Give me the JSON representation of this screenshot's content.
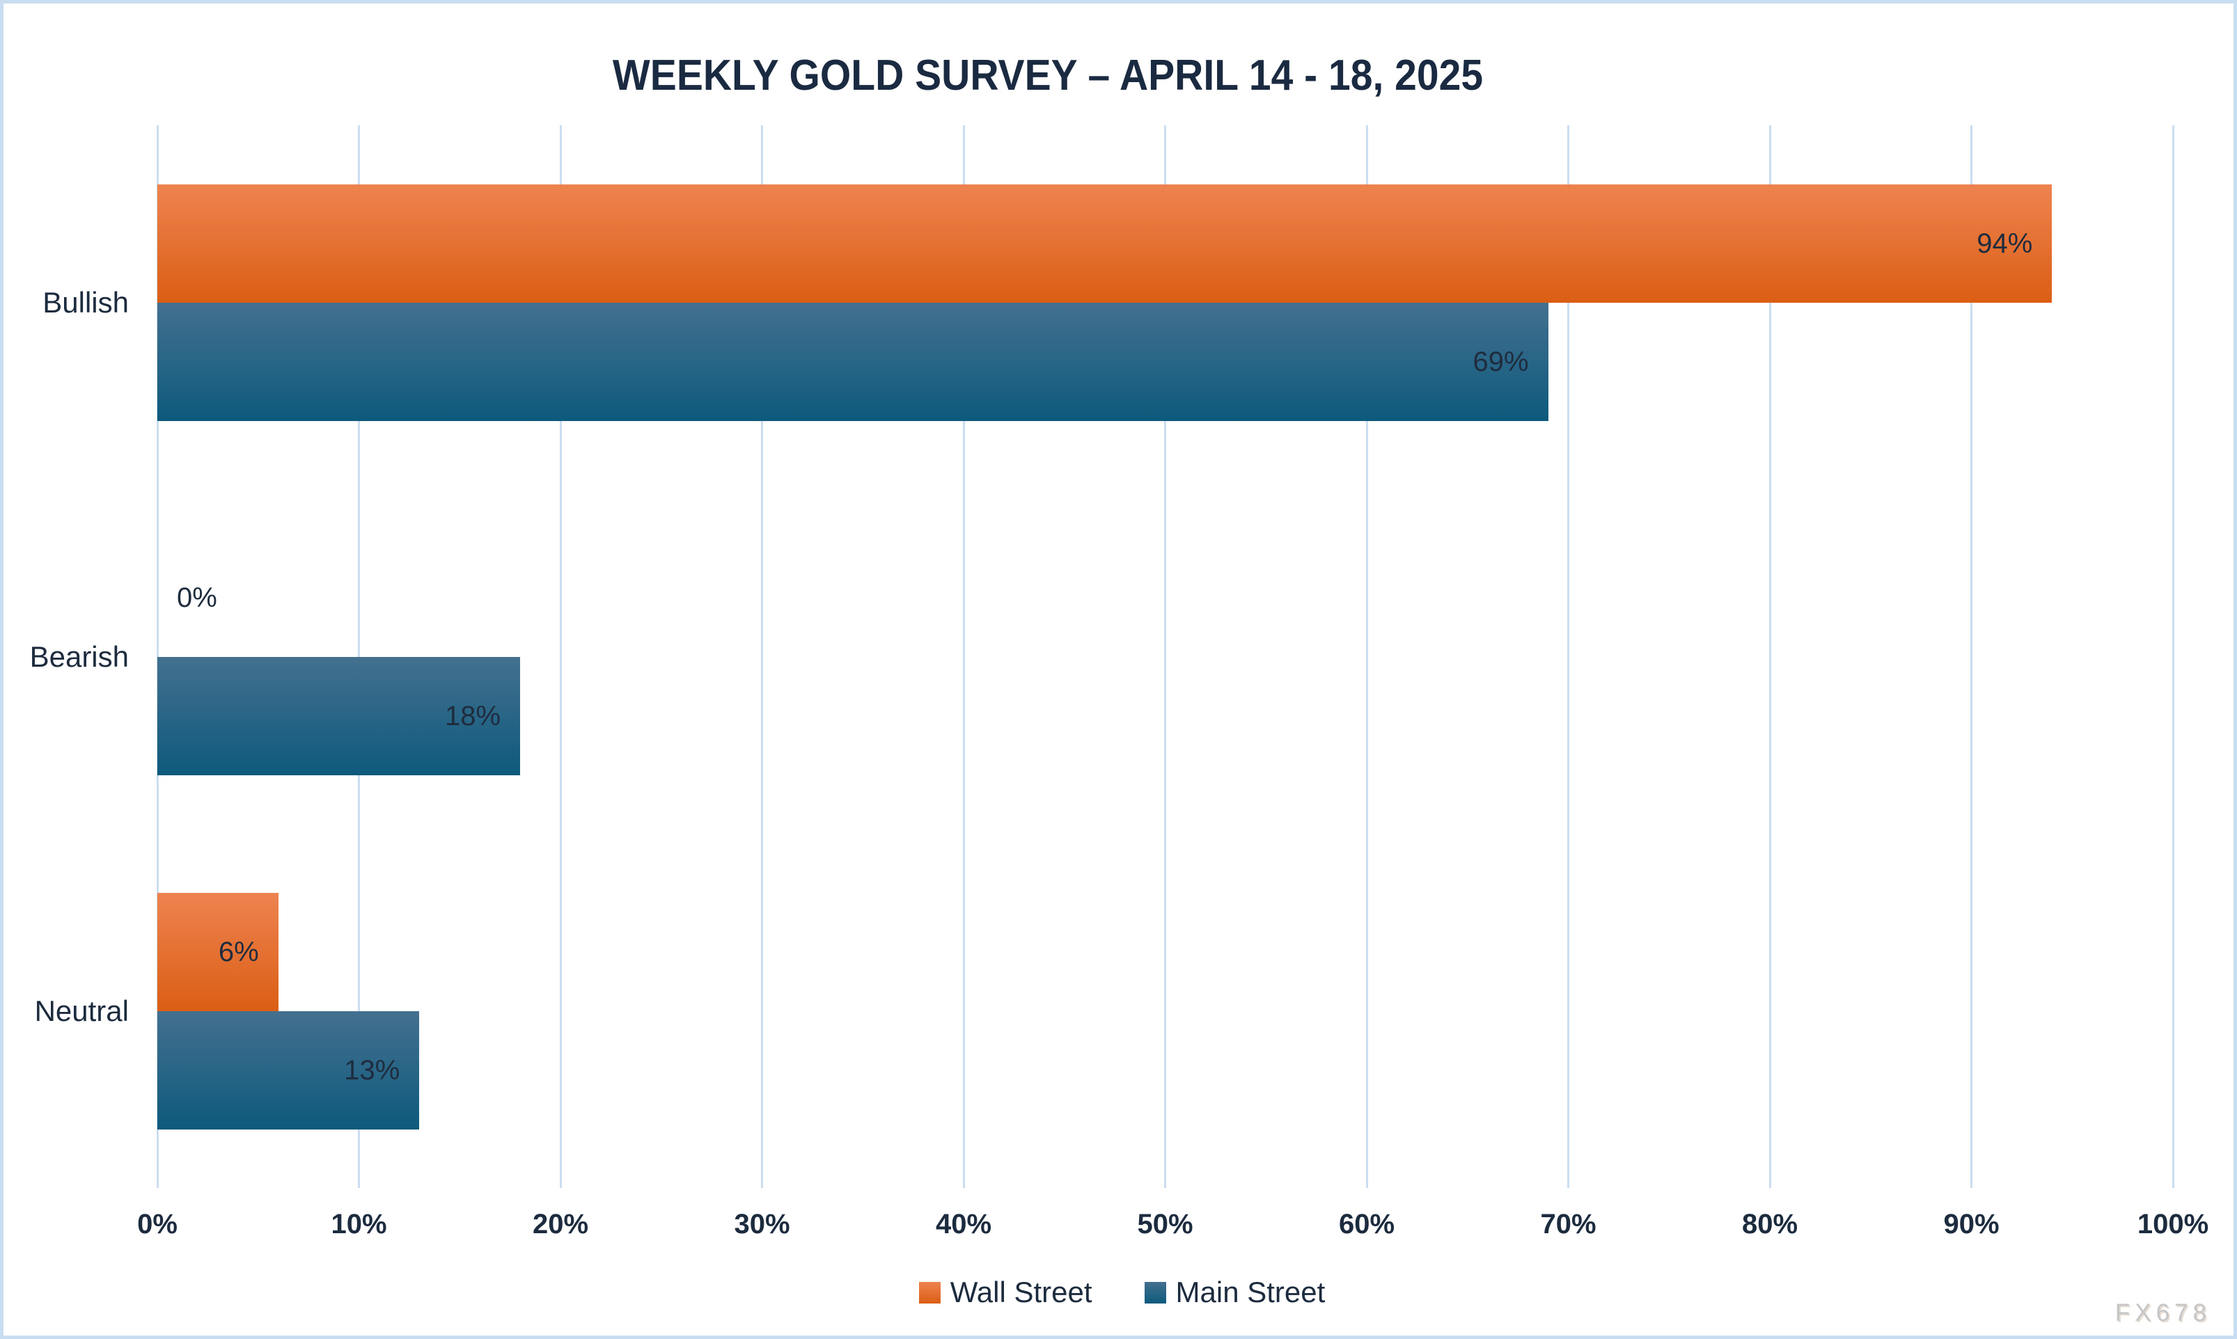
{
  "watermark": "FX678",
  "colors": {
    "title_text": "#1a2a40",
    "axis_text": "#1c2b3e",
    "bar_label_text": "#1e2c3e",
    "gridline": "#cbddf0",
    "frame_border": "#c9ddf1",
    "background": "#ffffff",
    "watermark_text": "#c6c6c6"
  },
  "chart_data": {
    "type": "bar",
    "orientation": "horizontal",
    "title": "WEEKLY GOLD SURVEY – APRIL 14 - 18, 2025",
    "categories": [
      "Bullish",
      "Bearish",
      "Neutral"
    ],
    "series": [
      {
        "name": "Wall Street",
        "values": [
          94,
          0,
          6
        ],
        "labels": [
          "94%",
          "0%",
          "6%"
        ],
        "color_top": "#ee8350",
        "color_bottom": "#db5e14"
      },
      {
        "name": "Main Street",
        "values": [
          69,
          18,
          13
        ],
        "labels": [
          "69%",
          "18%",
          "13%"
        ],
        "color_top": "#44708f",
        "color_bottom": "#0d5a7d"
      }
    ],
    "xlabel": "",
    "ylabel": "",
    "xlim": [
      0,
      100
    ],
    "x_ticks": [
      "0%",
      "10%",
      "20%",
      "30%",
      "40%",
      "50%",
      "60%",
      "70%",
      "80%",
      "90%",
      "100%"
    ],
    "grid": true,
    "data_label_position": "inside-end",
    "legend_position": "bottom"
  }
}
